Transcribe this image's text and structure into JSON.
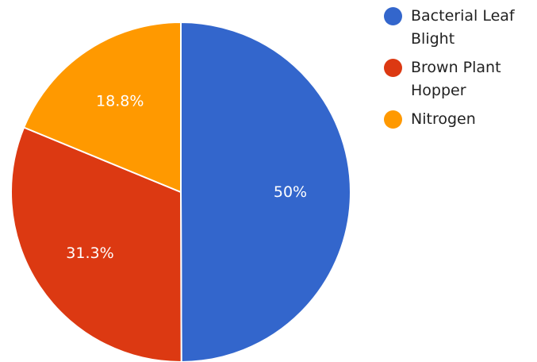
{
  "chart_data": {
    "type": "pie",
    "title": "",
    "categories": [
      "Bacterial Leaf Blight",
      "Brown Plant Hopper",
      "Nitrogen"
    ],
    "values": [
      50,
      31.3,
      18.8
    ],
    "value_labels": [
      "50%",
      "31.3%",
      "18.8%"
    ],
    "colors": [
      "#3366cc",
      "#dc3912",
      "#ff9900"
    ],
    "legend_position": "right",
    "legend": [
      {
        "name": "Bacterial Leaf Blight",
        "color": "#3366cc"
      },
      {
        "name": "Brown Plant Hopper",
        "color": "#dc3912"
      },
      {
        "name": "Nitrogen",
        "color": "#ff9900"
      }
    ]
  }
}
